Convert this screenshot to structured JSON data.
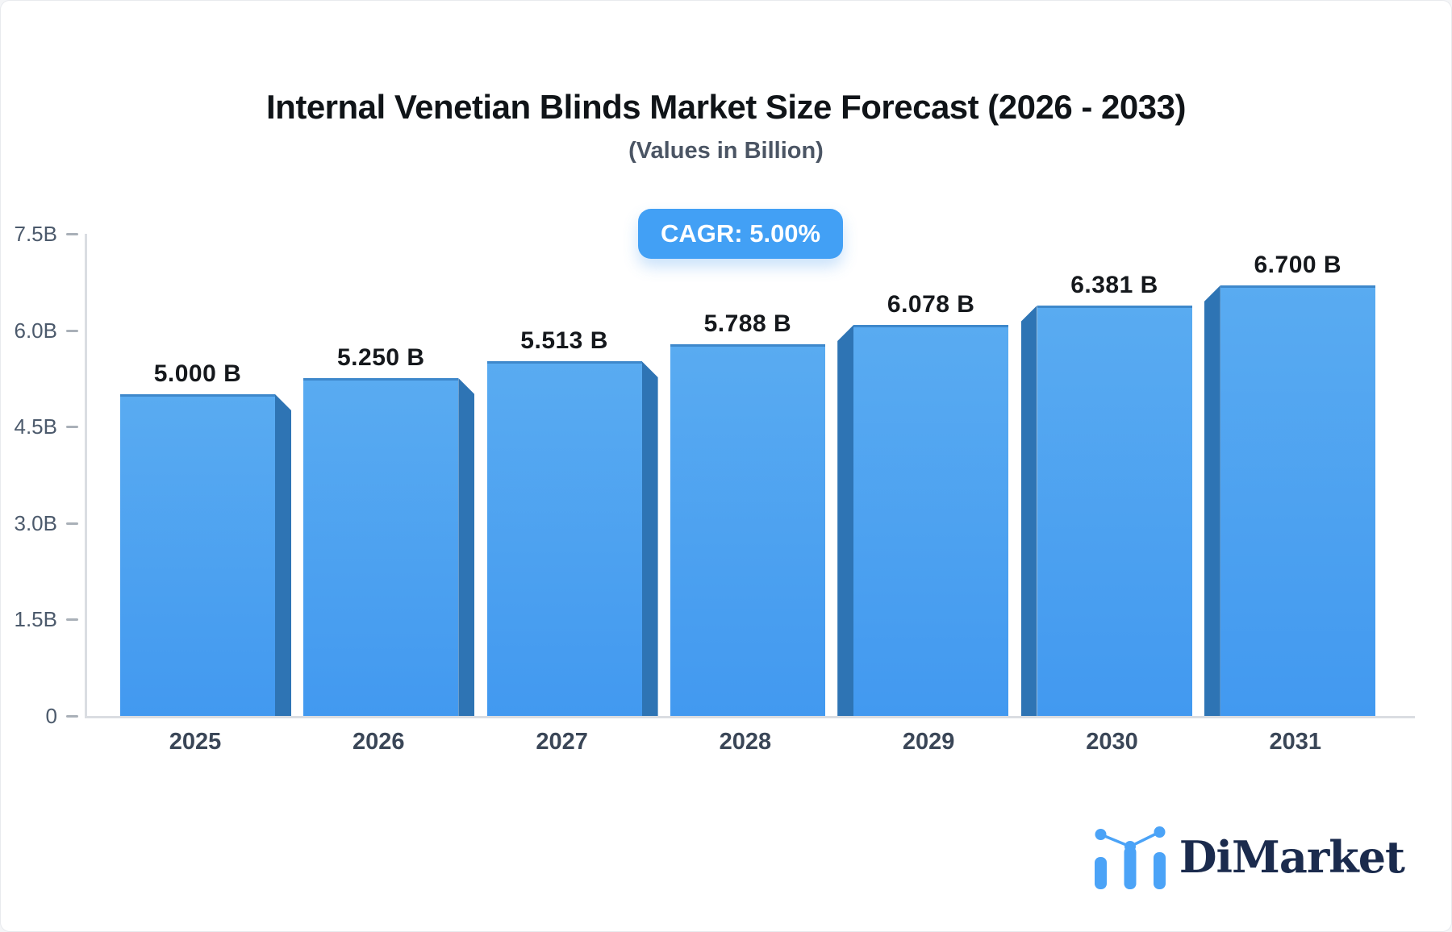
{
  "header": {
    "title": "Internal Venetian Blinds Market Size Forecast (2026 - 2033)",
    "subtitle": "(Values in Billion)",
    "cagr_badge": "CAGR: 5.00%"
  },
  "chart_data": {
    "type": "bar",
    "title": "Internal Venetian Blinds Market Size Forecast (2026 - 2033)",
    "subtitle": "(Values in Billion)",
    "categories": [
      "2025",
      "2026",
      "2027",
      "2028",
      "2029",
      "2030",
      "2031"
    ],
    "values": [
      5.0,
      5.25,
      5.513,
      5.788,
      6.078,
      6.381,
      6.7
    ],
    "data_labels": [
      "5.000 B",
      "5.250 B",
      "5.513 B",
      "5.788 B",
      "6.078 B",
      "6.381 B",
      "6.700 B"
    ],
    "y_ticks": [
      {
        "value": 0,
        "label": "0"
      },
      {
        "value": 1.5,
        "label": "1.5B"
      },
      {
        "value": 3.0,
        "label": "3.0B"
      },
      {
        "value": 4.5,
        "label": "4.5B"
      },
      {
        "value": 6.0,
        "label": "6.0B"
      },
      {
        "value": 7.5,
        "label": "7.5B"
      }
    ],
    "ylim": [
      0,
      7.5
    ],
    "xlabel": "",
    "ylabel": "",
    "grid": false,
    "legend": null,
    "annotations": [
      "CAGR: 5.00%"
    ]
  },
  "branding": {
    "logo_text": "DiMarket",
    "logo_icon": "bar-chart-logo-icon"
  },
  "colors": {
    "bar_face_top": "#59abf1",
    "bar_face_bottom": "#4299f0",
    "bar_face_edge": "#3e88cb",
    "bar_side": "#2e74b4",
    "badge_bg": "#42a0f5",
    "badge_text": "#ffffff",
    "axis_line": "#dadde2",
    "tick_dash": "#a9b0b8",
    "value_label": "#15181c",
    "x_label": "#3a4657",
    "y_label": "#4c5a6c",
    "title": "#101418",
    "subtitle": "#4b5564",
    "logo_text": "#1b2b4d",
    "logo_blue": "#4ba3f7"
  }
}
